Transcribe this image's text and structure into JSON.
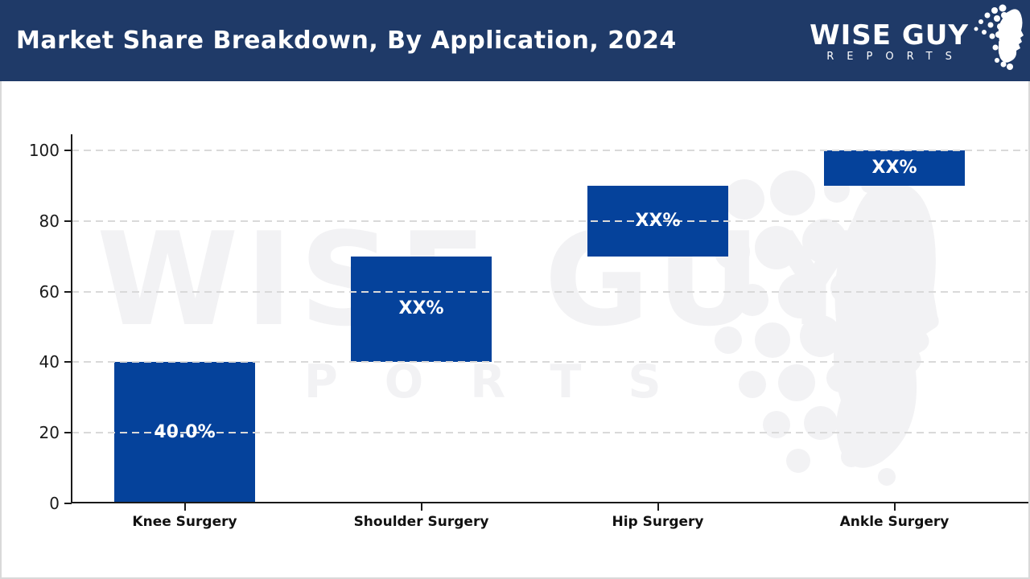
{
  "header": {
    "title": "Market Share Breakdown, By Application, 2024",
    "bg_color": "#1f3a68",
    "logo": {
      "line1": "WISE GUY",
      "line2": "REPORTS"
    }
  },
  "watermark": {
    "line1": "WISE GUY",
    "line2": "PORTS"
  },
  "chart_data": {
    "type": "bar",
    "subtype": "waterfall",
    "title": "Market Share Breakdown, By Application, 2024",
    "categories": [
      "Knee Surgery",
      "Shoulder Surgery",
      "Hip Surgery",
      "Ankle Surgery"
    ],
    "series": [
      {
        "name": "Market Share (%)",
        "starts": [
          0,
          40,
          70,
          90
        ],
        "ends": [
          40,
          70,
          90,
          100
        ],
        "values": [
          40,
          30,
          20,
          10
        ]
      }
    ],
    "bar_labels": [
      "40.0%",
      "XX%",
      "XX%",
      "XX%"
    ],
    "yticks": [
      0,
      20,
      40,
      60,
      80,
      100
    ],
    "ylim": [
      0,
      105
    ],
    "xlabel": "",
    "ylabel": "",
    "grid": "horizontal-dashed",
    "legend_position": "none",
    "bar_color": "#05429b",
    "grid_color": "#d9d9d9",
    "axis_color": "#1a1a1a",
    "label_text_color": "#ffffff",
    "watermark_color": "#f2f2f4"
  }
}
